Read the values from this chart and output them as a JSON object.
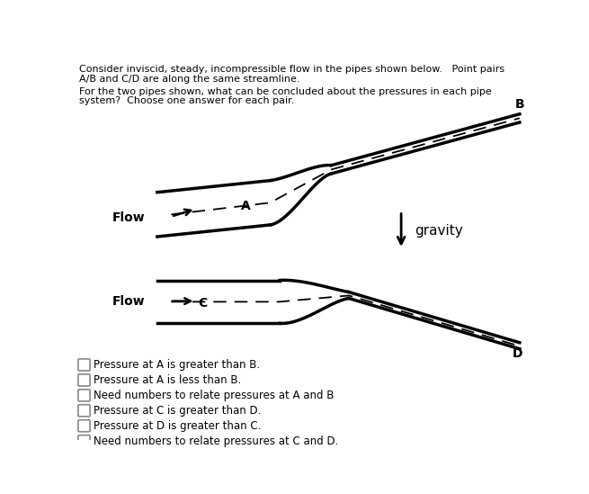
{
  "bg_color": "#ffffff",
  "title_lines": [
    "Consider inviscid, steady, incompressible flow in the pipes shown below.   Point pairs",
    "A/B and C/D are along the same streamline."
  ],
  "subtitle_lines": [
    "For the two pipes shown, what can be concluded about the pressures in each pipe",
    "system?  Choose one answer for each pair."
  ],
  "choices": [
    "Pressure at A is greater than B.",
    "Pressure at A is less than B.",
    "Need numbers to relate pressures at A and B",
    "Pressure at C is greater than D.",
    "Pressure at D is greater than C.",
    "Need numbers to relate pressures at C and D."
  ],
  "gravity_label": "gravity",
  "flow_label": "Flow",
  "point_A": "A",
  "point_B": "B",
  "point_C": "C",
  "point_D": "D",
  "figsize": [
    6.55,
    5.49
  ],
  "dpi": 100
}
